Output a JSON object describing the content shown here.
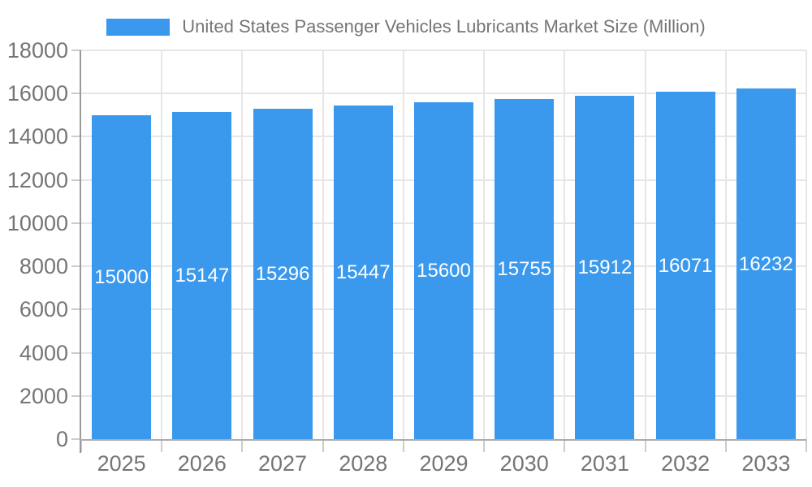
{
  "chart_data": {
    "type": "bar",
    "title": "",
    "legend": "United States Passenger Vehicles Lubricants Market Size (Million)",
    "legend_position": "top",
    "categories": [
      "2025",
      "2026",
      "2027",
      "2028",
      "2029",
      "2030",
      "2031",
      "2032",
      "2033"
    ],
    "values": [
      15000,
      15147,
      15296,
      15447,
      15600,
      15755,
      15912,
      16071,
      16232
    ],
    "bar_labels": [
      "15000",
      "15147",
      "15296",
      "15447",
      "15600",
      "15755",
      "15912",
      "16071",
      "16232"
    ],
    "bar_label_position": "middle-of-bar",
    "xlabel": "",
    "ylabel": "",
    "ylim": [
      0,
      18000
    ],
    "ytick_interval": 2000,
    "ytick_labels": [
      "0",
      "2000",
      "4000",
      "6000",
      "8000",
      "10000",
      "12000",
      "14000",
      "16000",
      "18000"
    ],
    "grid": true,
    "colors": {
      "bar": "#3A99EC",
      "bar_label_text": "#FFFFFF",
      "grid_line": "#E6E6E6",
      "tick_mark": "#CCCCCC",
      "axis_line_y": "#9A9A9A",
      "axis_line_x": "#ABABAB",
      "tick_text": "#757575",
      "legend_text": "#757575",
      "background": "#FFFFFF"
    }
  }
}
